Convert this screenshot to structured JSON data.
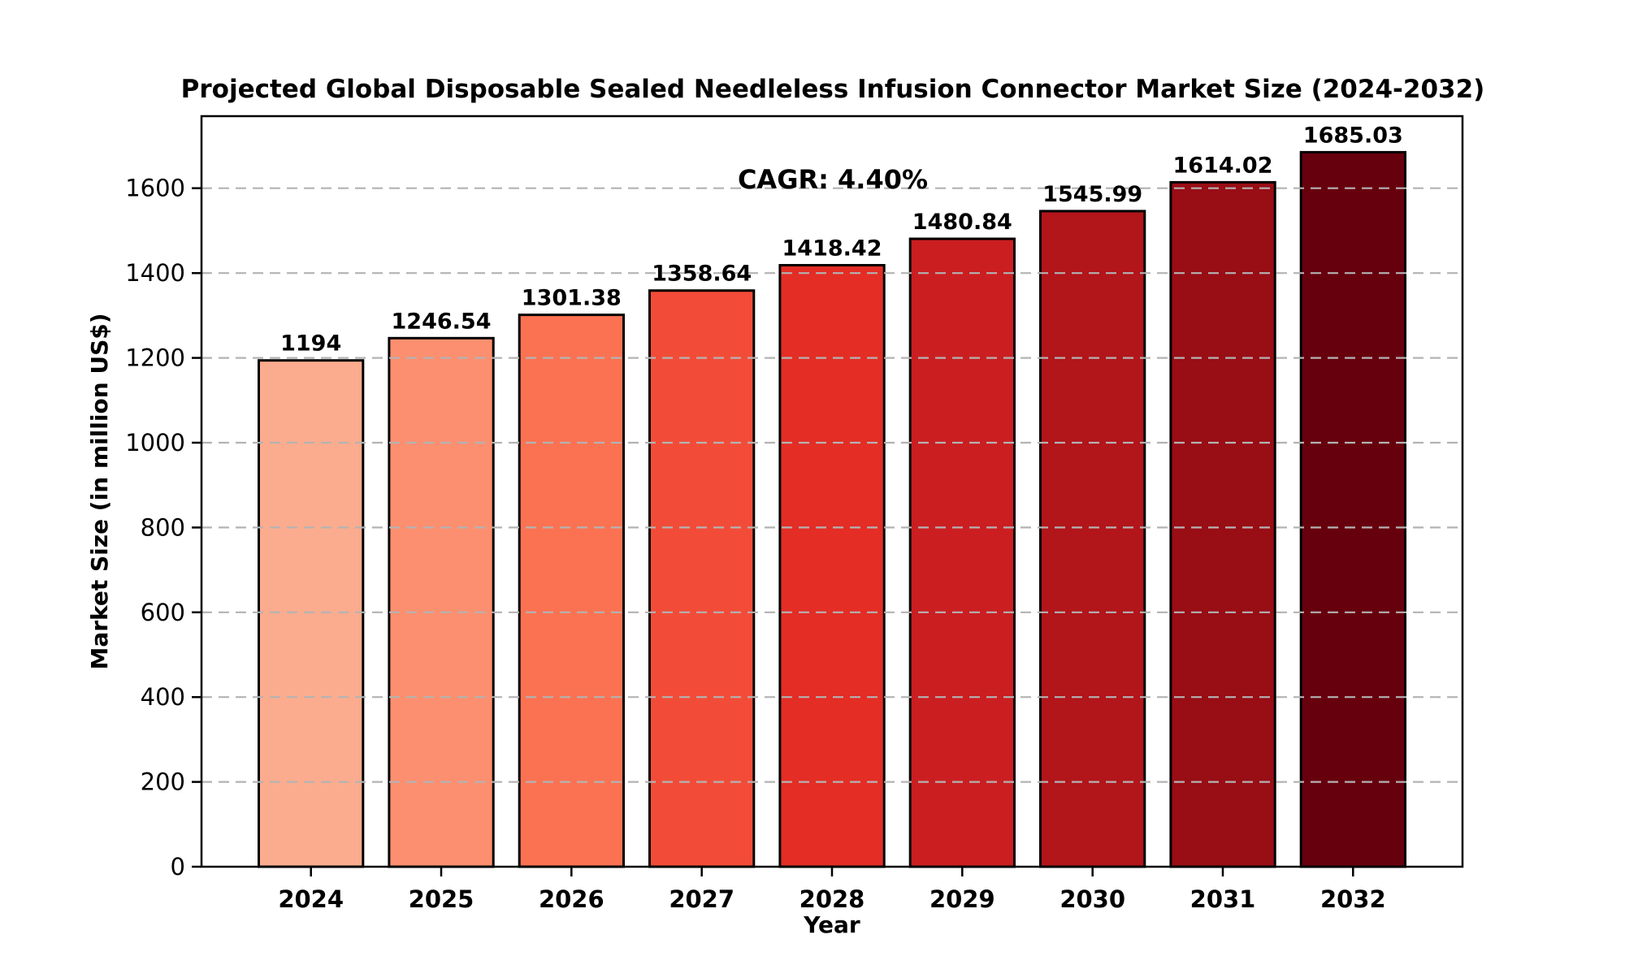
{
  "chart_data": {
    "type": "bar",
    "title": "Projected Global Disposable Sealed Needleless Infusion Connector Market Size (2024-2032)",
    "annotation": "CAGR: 4.40%",
    "xlabel": "Year",
    "ylabel": "Market Size (in million US$)",
    "categories": [
      "2024",
      "2025",
      "2026",
      "2027",
      "2028",
      "2029",
      "2030",
      "2031",
      "2032"
    ],
    "values": [
      1194,
      1246.54,
      1301.38,
      1358.64,
      1418.42,
      1480.84,
      1545.99,
      1614.02,
      1685.03
    ],
    "value_labels": [
      "1194",
      "1246.54",
      "1301.38",
      "1358.64",
      "1418.42",
      "1480.84",
      "1545.99",
      "1614.02",
      "1685.03"
    ],
    "bar_colors": [
      "#fcac8e",
      "#fc8f6f",
      "#fb7252",
      "#f24c38",
      "#e32d25",
      "#cb1e21",
      "#b2151a",
      "#990d15",
      "#67000d"
    ],
    "bar_edge_color": "#000000",
    "ylim": [
      0,
      1770
    ],
    "yticks": [
      0,
      200,
      400,
      600,
      800,
      1000,
      1200,
      1400,
      1600
    ],
    "grid": "horizontal-dashed",
    "grid_color": "#b3b3b3",
    "legend": "none"
  }
}
